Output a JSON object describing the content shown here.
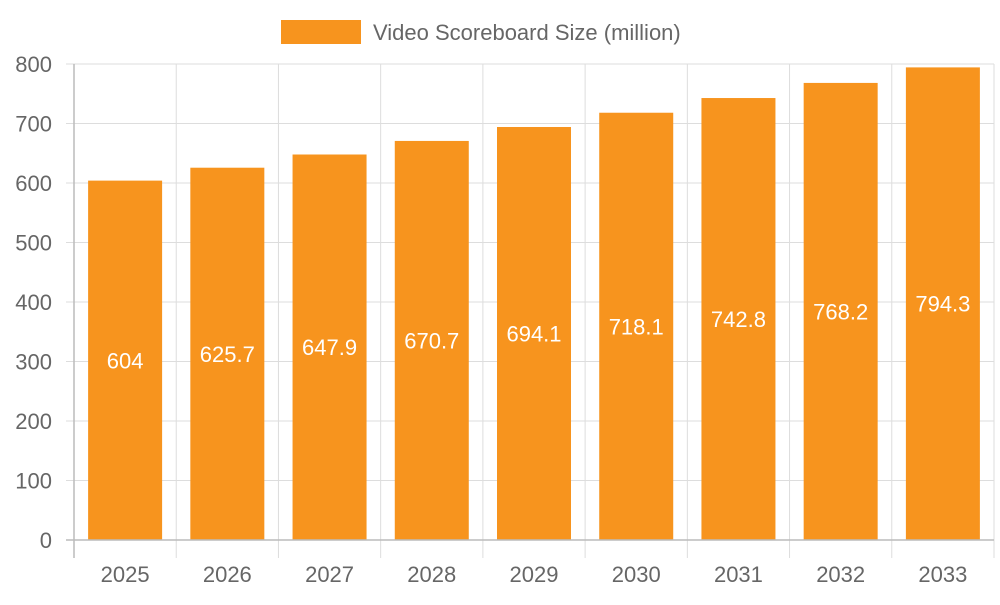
{
  "chart_data": {
    "type": "bar",
    "categories": [
      "2025",
      "2026",
      "2027",
      "2028",
      "2029",
      "2030",
      "2031",
      "2032",
      "2033"
    ],
    "series": [
      {
        "name": "Video Scoreboard Size (million)",
        "values": [
          604,
          625.7,
          647.9,
          670.7,
          694.1,
          718.1,
          742.8,
          768.2,
          794.3
        ],
        "data_labels": [
          "604",
          "625.7",
          "647.9",
          "670.7",
          "694.1",
          "718.1",
          "742.8",
          "768.2",
          "794.3"
        ]
      }
    ],
    "ylim": [
      0,
      800
    ],
    "yticks": [
      0,
      100,
      200,
      300,
      400,
      500,
      600,
      700,
      800
    ],
    "grid": true,
    "legend_position": "top",
    "colors": {
      "bar": "#f7941e"
    }
  }
}
